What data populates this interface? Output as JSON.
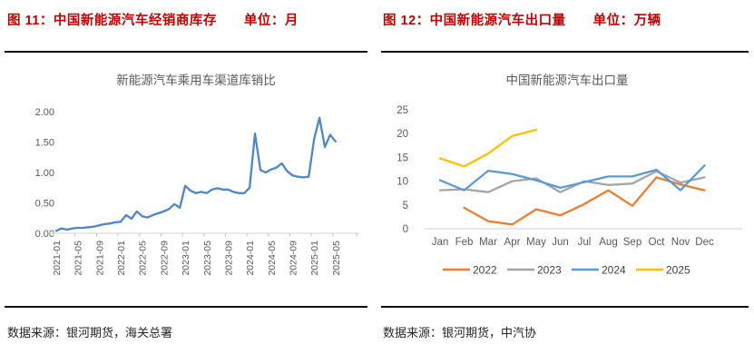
{
  "figures": [
    {
      "heading": "图 11：中国新能源汽车经销商库存",
      "unit": "单位：月",
      "source": "数据来源：银河期货，海关总署"
    },
    {
      "heading": "图 12：中国新能源汽车出口量",
      "unit": "单位：万辆",
      "source": "数据来源：银河期货，中汽协"
    }
  ],
  "colors": {
    "heading_red": "#C00000",
    "axis_text": "#595959",
    "axis_line": "#D9D9D9",
    "tick": "#BFBFBF",
    "rule_black": "#0a0a0a",
    "left_line_blue": "#4E86C8",
    "orange_2022": "#ED7D31",
    "gray_2023": "#A5A5A5",
    "blue_2024": "#5B9BD5",
    "yellow_2025": "#FFC000"
  },
  "chart_data": [
    {
      "type": "line",
      "title": "新能源汽车乘用车渠道库销比",
      "xlabel": "",
      "ylabel": "",
      "grid": false,
      "legend_position": "none",
      "ylim": [
        0,
        2
      ],
      "y_tick_labels": [
        "0.00",
        "0.50",
        "1.00",
        "1.50",
        "2.00"
      ],
      "x_tick_labels": [
        "2021-01",
        "2021-05",
        "2021-09",
        "2022-01",
        "2022-05",
        "2022-09",
        "2023-01",
        "2023-05",
        "2023-09",
        "2024-01",
        "2024-05",
        "2024-09",
        "2025-01",
        "2025-05"
      ],
      "categories": [
        "2021-01",
        "2021-02",
        "2021-03",
        "2021-04",
        "2021-05",
        "2021-06",
        "2021-07",
        "2021-08",
        "2021-09",
        "2021-10",
        "2021-11",
        "2021-12",
        "2022-01",
        "2022-02",
        "2022-03",
        "2022-04",
        "2022-05",
        "2022-06",
        "2022-07",
        "2022-08",
        "2022-09",
        "2022-10",
        "2022-11",
        "2022-12",
        "2023-01",
        "2023-02",
        "2023-03",
        "2023-04",
        "2023-05",
        "2023-06",
        "2023-07",
        "2023-08",
        "2023-09",
        "2023-10",
        "2023-11",
        "2023-12",
        "2024-01",
        "2024-02",
        "2024-03",
        "2024-04",
        "2024-05",
        "2024-06",
        "2024-07",
        "2024-08",
        "2024-09",
        "2024-10",
        "2024-11",
        "2024-12",
        "2025-01",
        "2025-02",
        "2025-03",
        "2025-04",
        "2025-05"
      ],
      "series": [
        {
          "name": "渠道库销比",
          "color": "#4E86C8",
          "values": [
            0.04,
            0.08,
            0.06,
            0.08,
            0.09,
            0.09,
            0.1,
            0.11,
            0.13,
            0.15,
            0.16,
            0.18,
            0.19,
            0.3,
            0.24,
            0.36,
            0.28,
            0.26,
            0.3,
            0.33,
            0.36,
            0.4,
            0.48,
            0.42,
            0.78,
            0.7,
            0.66,
            0.68,
            0.66,
            0.72,
            0.74,
            0.72,
            0.72,
            0.68,
            0.66,
            0.66,
            0.75,
            1.64,
            1.04,
            1.0,
            1.05,
            1.08,
            1.15,
            1.02,
            0.95,
            0.93,
            0.92,
            0.93,
            1.55,
            1.9,
            1.42,
            1.62,
            1.51
          ]
        }
      ]
    },
    {
      "type": "line",
      "title": "中国新能源汽车出口量",
      "xlabel": "",
      "ylabel": "",
      "grid": false,
      "legend_position": "bottom",
      "ylim": [
        0,
        25
      ],
      "y_tick_labels": [
        "0",
        "5",
        "10",
        "15",
        "20",
        "25"
      ],
      "categories": [
        "Jan",
        "Feb",
        "Mar",
        "Apr",
        "May",
        "Jun",
        "Jul",
        "Aug",
        "Sep",
        "Oct",
        "Nov",
        "Dec"
      ],
      "series": [
        {
          "name": "2022",
          "color": "#ED7D31",
          "values": [
            null,
            4.4,
            1.6,
            0.9,
            4.1,
            2.8,
            5.2,
            8.1,
            4.8,
            10.8,
            9.3,
            8.1
          ]
        },
        {
          "name": "2023",
          "color": "#A5A5A5",
          "values": [
            8.1,
            8.3,
            7.7,
            10.0,
            10.6,
            7.7,
            10.0,
            9.2,
            9.5,
            12.1,
            9.7,
            10.8
          ]
        },
        {
          "name": "2024",
          "color": "#5B9BD5",
          "values": [
            10.2,
            8.1,
            12.2,
            11.5,
            10.2,
            8.6,
            9.8,
            11.0,
            11.0,
            12.4,
            8.1,
            13.3
          ]
        },
        {
          "name": "2025",
          "color": "#FFC000",
          "values": [
            14.8,
            13.1,
            15.8,
            19.5,
            20.8,
            null,
            null,
            null,
            null,
            null,
            null,
            null
          ]
        }
      ]
    }
  ]
}
